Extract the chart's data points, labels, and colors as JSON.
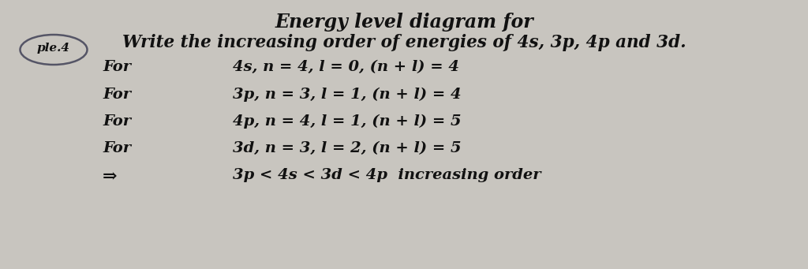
{
  "background_color": "#c8c5bf",
  "title1": "Energy level diagram for",
  "title2": "energies of 4s, 3p, 4p and 3d.",
  "subtitle": "Write the increasing order of",
  "circle_label": "ple.4",
  "rows": [
    {
      "left": "For",
      "right": "4s, n = 4, l = 0, (n + l) = 4"
    },
    {
      "left": "For",
      "right": "3p, n = 3, l = 1, (n + l) = 4"
    },
    {
      "left": "For",
      "right": "4p, n = 4, l = 1, (n + l) = 5"
    },
    {
      "left": "For",
      "right": "3d, n = 3, l = 2, (n + l) = 5"
    },
    {
      "left": "⇒",
      "right": "3p < 4s < 3d < 4p  increasing order"
    }
  ],
  "font_size_title": 17,
  "font_size_sub": 15.5,
  "font_size_body": 14,
  "text_color": "#111111"
}
